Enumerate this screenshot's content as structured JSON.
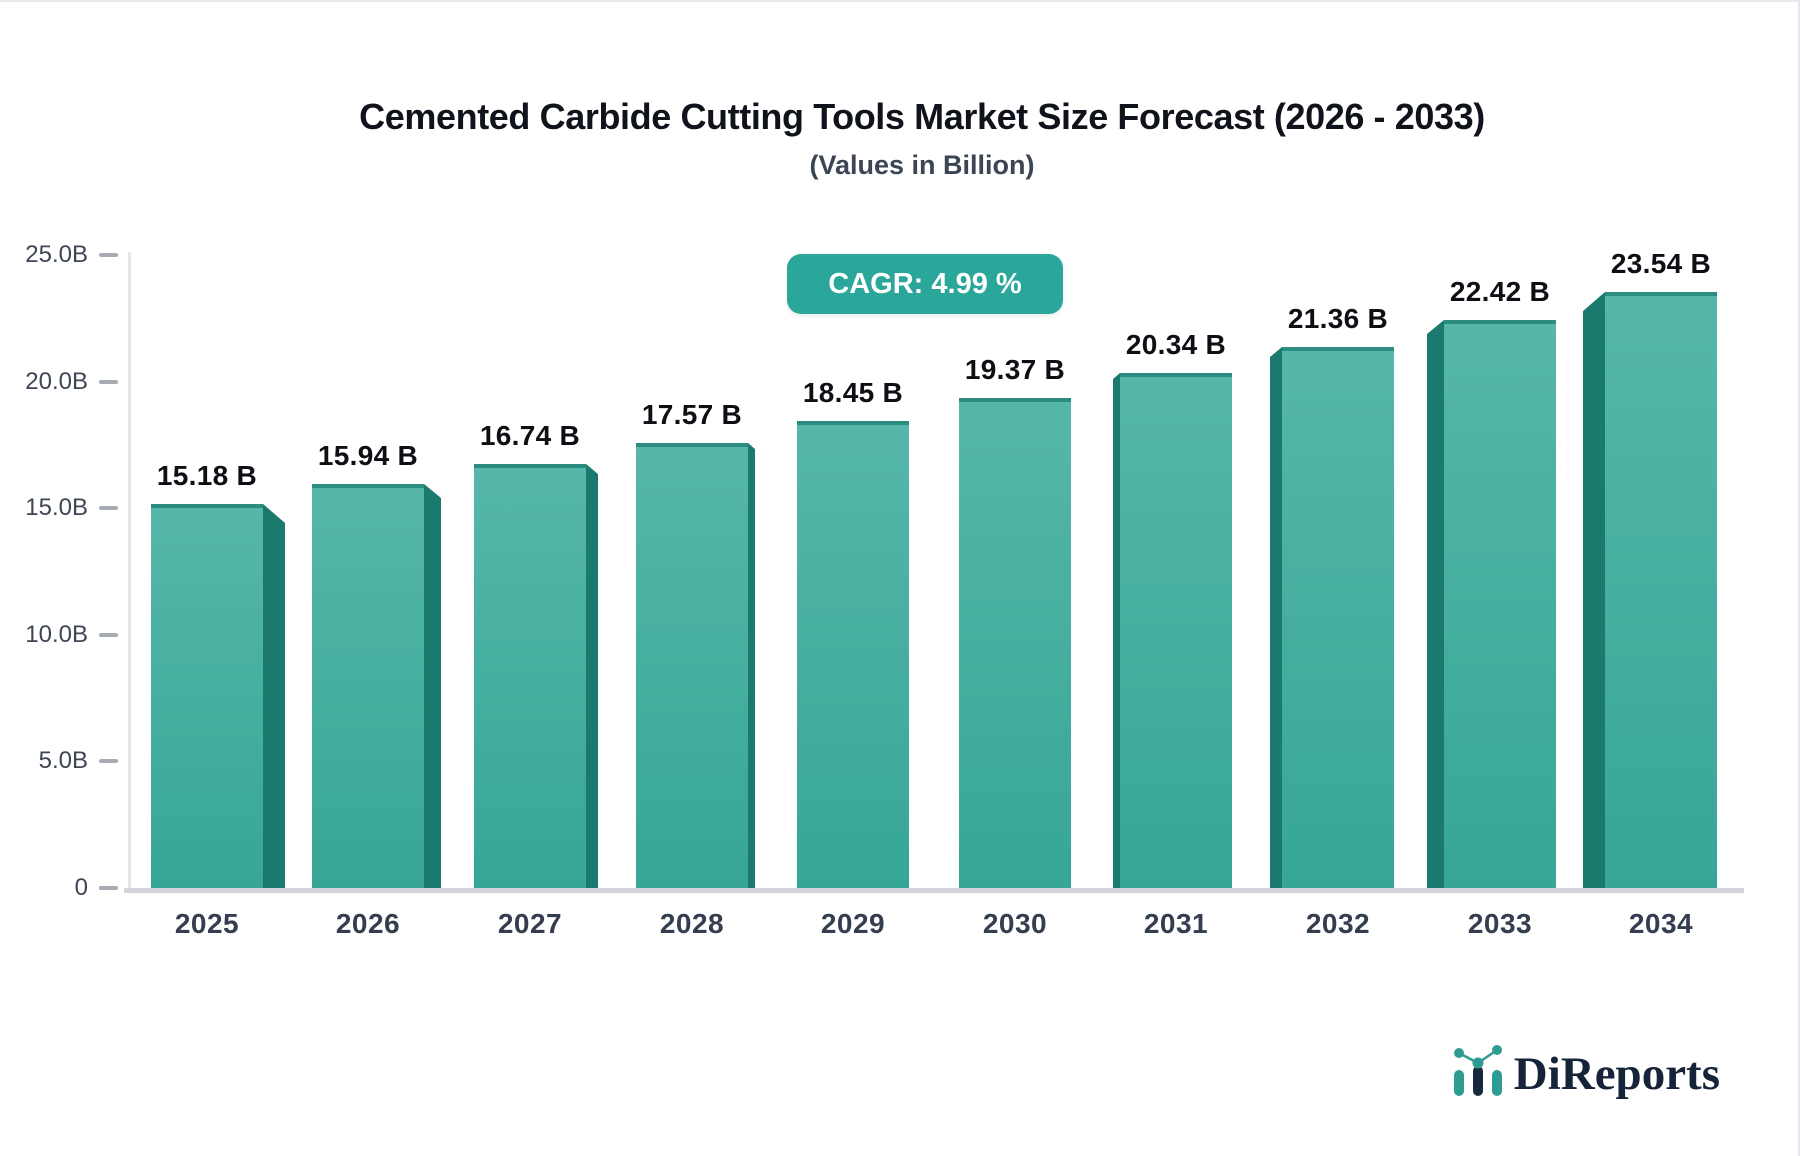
{
  "header": {
    "title": "Cemented Carbide Cutting Tools Market Size Forecast (2026 - 2033)",
    "subtitle": "(Values in Billion)",
    "cagr_badge": "CAGR: 4.99 %"
  },
  "chart_data": {
    "type": "bar",
    "title": "Cemented Carbide Cutting Tools Market Size Forecast (2026 - 2033)",
    "subtitle": "(Values in Billion)",
    "annotation": "CAGR: 4.99 %",
    "categories": [
      "2025",
      "2026",
      "2027",
      "2028",
      "2029",
      "2030",
      "2031",
      "2032",
      "2033",
      "2034"
    ],
    "values": [
      15.18,
      15.94,
      16.74,
      17.57,
      18.45,
      19.37,
      20.34,
      21.36,
      22.42,
      23.54
    ],
    "value_labels": [
      "15.18 B",
      "15.94 B",
      "16.74 B",
      "17.57 B",
      "18.45 B",
      "19.37 B",
      "20.34 B",
      "21.36 B",
      "22.42 B",
      "23.54 B"
    ],
    "unit": "Billion",
    "xlabel": "",
    "ylabel": "",
    "ylim": [
      0,
      25
    ],
    "yticks": [
      {
        "value": 25,
        "label": "25.0B"
      },
      {
        "value": 20,
        "label": "20.0B"
      },
      {
        "value": 15,
        "label": "15.0B"
      },
      {
        "value": 10,
        "label": "10.0B"
      },
      {
        "value": 5,
        "label": "5.0B"
      },
      {
        "value": 0,
        "label": "0"
      }
    ],
    "grid": false,
    "legend": "none",
    "style": {
      "bar_gradient_top": "#55b7a9",
      "bar_gradient_bottom": "#37a697",
      "bar_side_3d": "#1b7a6e",
      "bar_top_edge": "#2a8d80",
      "badge_background": "#2aa79a",
      "axis_line": "#d3d5da"
    }
  },
  "branding": {
    "logo_text": "DiReports",
    "logo_icon": "bar-chart-trend-icon",
    "logo_icon_teal": "#2f9c92",
    "logo_icon_navy": "#16293e"
  }
}
